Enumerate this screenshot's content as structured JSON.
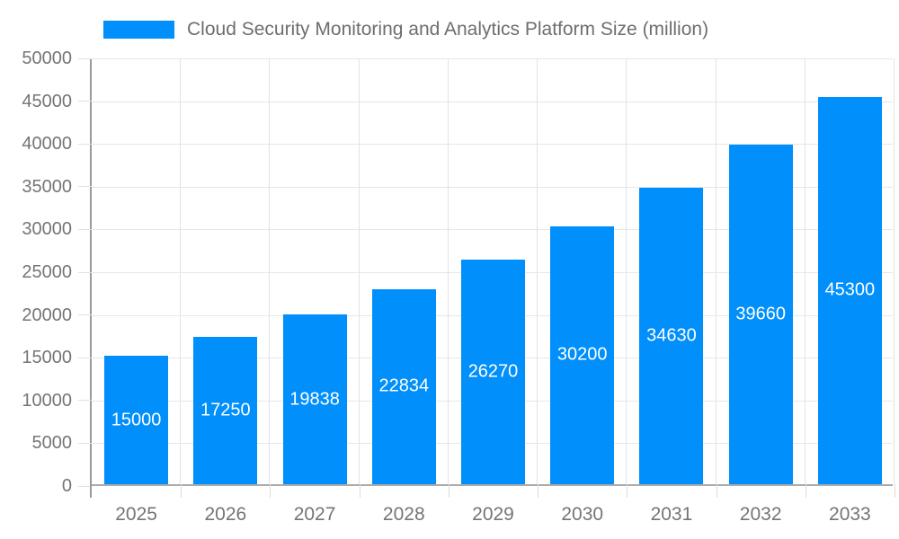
{
  "legend": {
    "label": "Cloud Security Monitoring and Analytics Platform Size (million)"
  },
  "chart_data": {
    "type": "bar",
    "title": "Cloud Security Monitoring and Analytics Platform Size (million)",
    "categories": [
      "2025",
      "2026",
      "2027",
      "2028",
      "2029",
      "2030",
      "2031",
      "2032",
      "2033"
    ],
    "values": [
      15000,
      17250,
      19838,
      22834,
      26270,
      30200,
      34630,
      39660,
      45300
    ],
    "xlabel": "",
    "ylabel": "",
    "ylim": [
      0,
      50000
    ],
    "ytick_step": 5000,
    "grid": true,
    "legend_position": "top",
    "colors": {
      "bar": "#008FFB",
      "data_label": "#ffffff",
      "axis_label": "#757575",
      "legend_label": "#6e6e6e",
      "gridline": "#e7e7e7"
    }
  }
}
